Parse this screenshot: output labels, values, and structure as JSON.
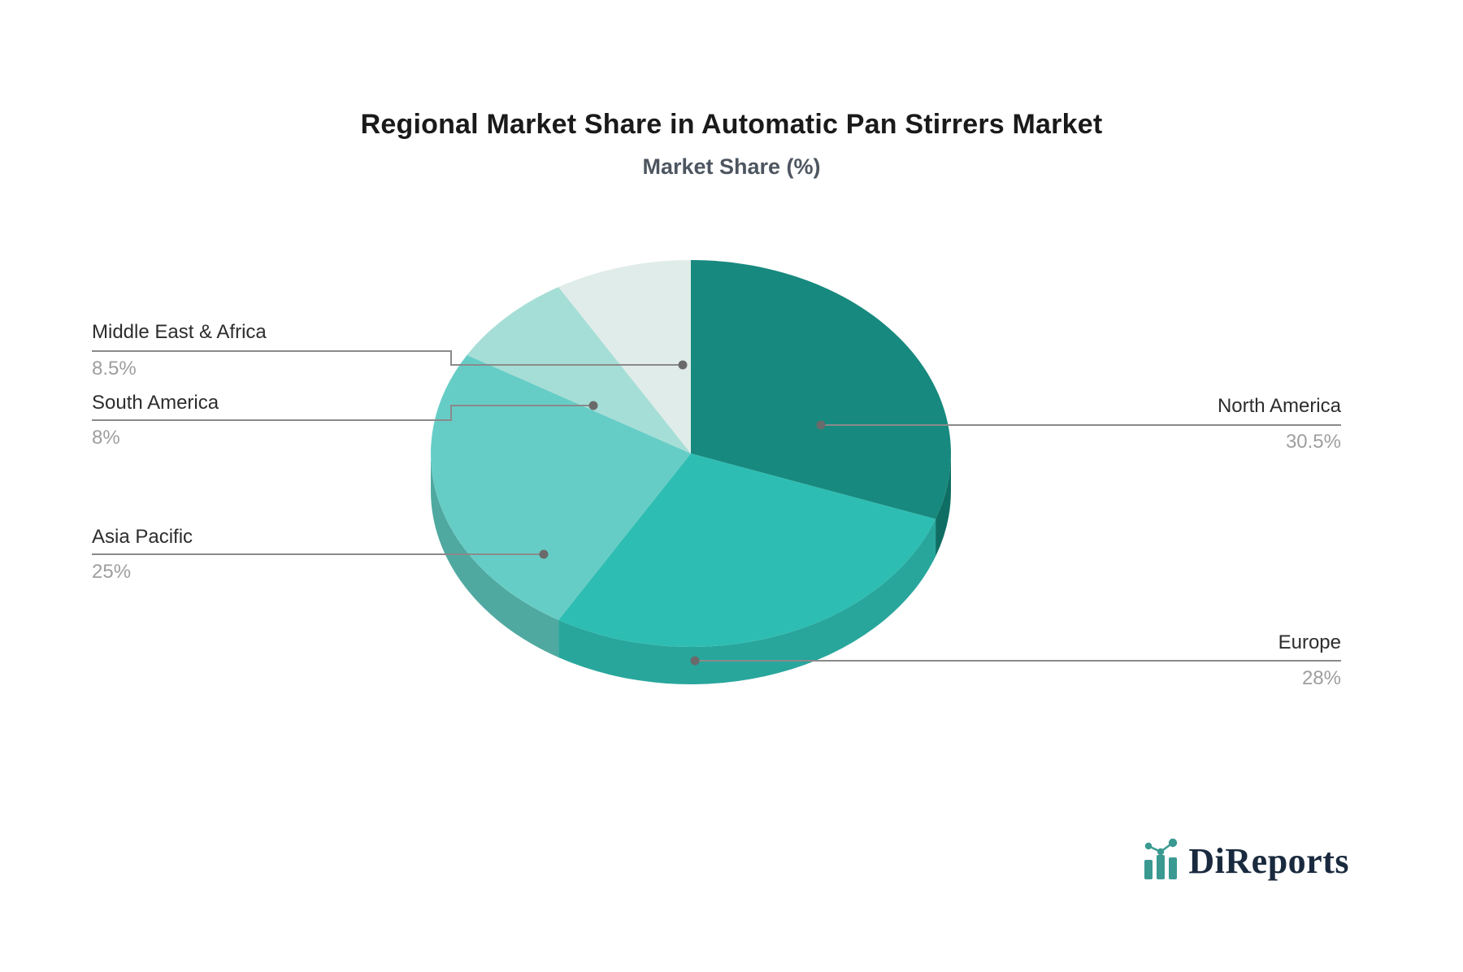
{
  "chart_data": {
    "type": "pie",
    "title": "Regional Market Share in Automatic Pan Stirrers Market",
    "subtitle": "Market Share (%)",
    "units": "%",
    "style3d": true,
    "legend": "none",
    "direction": "clockwise",
    "start_angle_deg": 0,
    "slices": [
      {
        "label": "North America",
        "value": 30.5,
        "value_label": "30.5%",
        "color": "#17897e",
        "side_color": "#0f6e64",
        "label_side": "right"
      },
      {
        "label": "Europe",
        "value": 28,
        "value_label": "28%",
        "color": "#2ebdb2",
        "side_color": "#28a69c",
        "label_side": "right"
      },
      {
        "label": "Asia Pacific",
        "value": 25,
        "value_label": "25%",
        "color": "#66cdc6",
        "side_color": "#4fa9a0",
        "label_side": "left"
      },
      {
        "label": "South America",
        "value": 8,
        "value_label": "8%",
        "color": "#a5ded6",
        "side_color": "#8fc5bd",
        "label_side": "left"
      },
      {
        "label": "Middle East & Africa",
        "value": 8.5,
        "value_label": "8.5%",
        "color": "#e0ece9",
        "side_color": "#c9dcd8",
        "label_side": "left"
      }
    ],
    "style": {
      "leader_line_color": "#8a8a8a",
      "connector_dot_color": "#6a6a6a",
      "label_text_color": "#2d2d2d",
      "value_text_color": "#9e9e9e"
    }
  },
  "branding": {
    "logo_text": "DiReports",
    "logo_color": "#1a2a3e",
    "icon_color": "#3a9a92",
    "icon": "bar-line-chart-icon"
  }
}
